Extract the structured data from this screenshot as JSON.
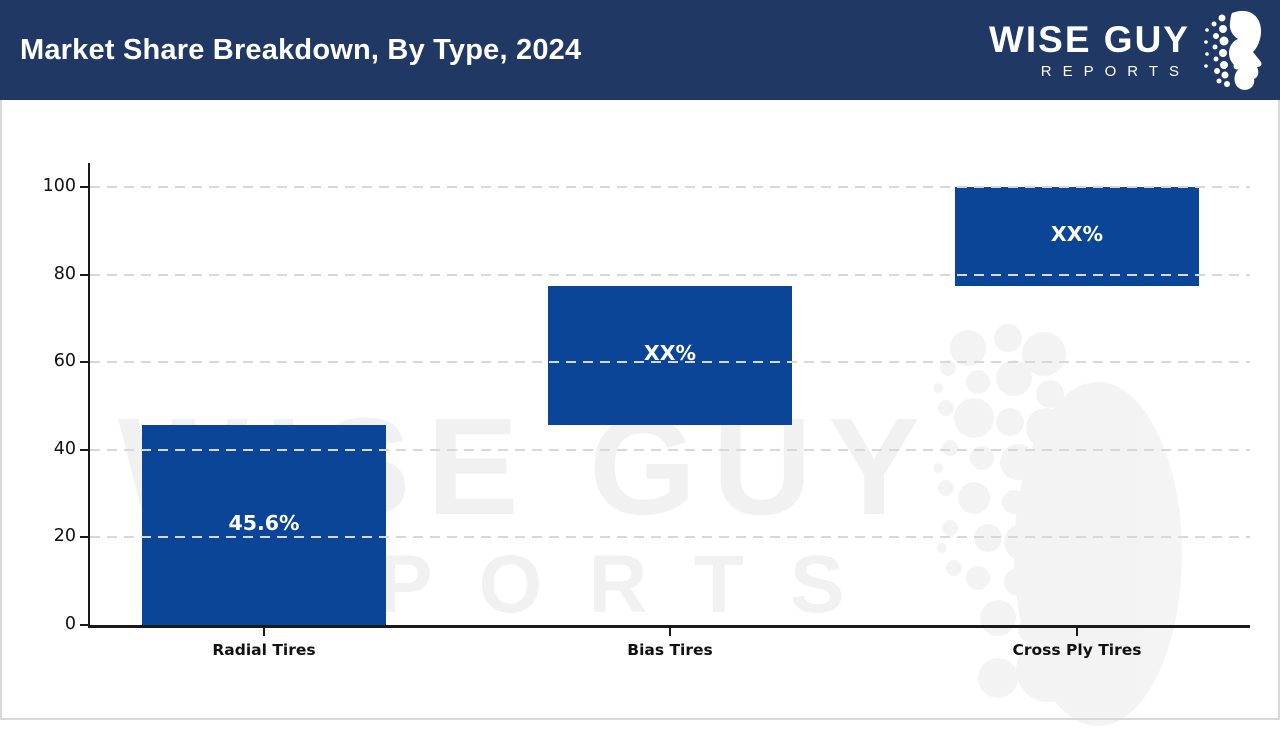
{
  "header": {
    "title": "Market Share Breakdown, By Type, 2024",
    "logo": {
      "line1": "WISE GUY",
      "line2": "REPORTS"
    }
  },
  "watermark": {
    "line1": "WISE GUY",
    "line2": "REPORTS"
  },
  "chart_data": {
    "type": "bar",
    "subtype": "floating-stacked-percent",
    "title": "Market Share Breakdown, By Type, 2024",
    "categories": [
      "Radial Tires",
      "Bias Tires",
      "Cross Ply Tires"
    ],
    "segments": [
      {
        "category": "Radial Tires",
        "start": 0,
        "end": 45.6,
        "label": "45.6%"
      },
      {
        "category": "Bias Tires",
        "start": 45.6,
        "end": 77.5,
        "label": "XX%"
      },
      {
        "category": "Cross Ply Tires",
        "start": 77.5,
        "end": 100,
        "label": "XX%"
      }
    ],
    "yticks": [
      0,
      20,
      40,
      60,
      80,
      100
    ],
    "ylim": [
      0,
      105
    ],
    "grid": "dashed-horizontal",
    "legend": "none",
    "bar_color": "#0B4598",
    "bar_label_color": "#ffffff"
  },
  "colors": {
    "header_bg": "#1F3864",
    "axis": "#1a1a1a",
    "grid": "#d8d8d8",
    "frame_border": "#d9d9d9"
  }
}
